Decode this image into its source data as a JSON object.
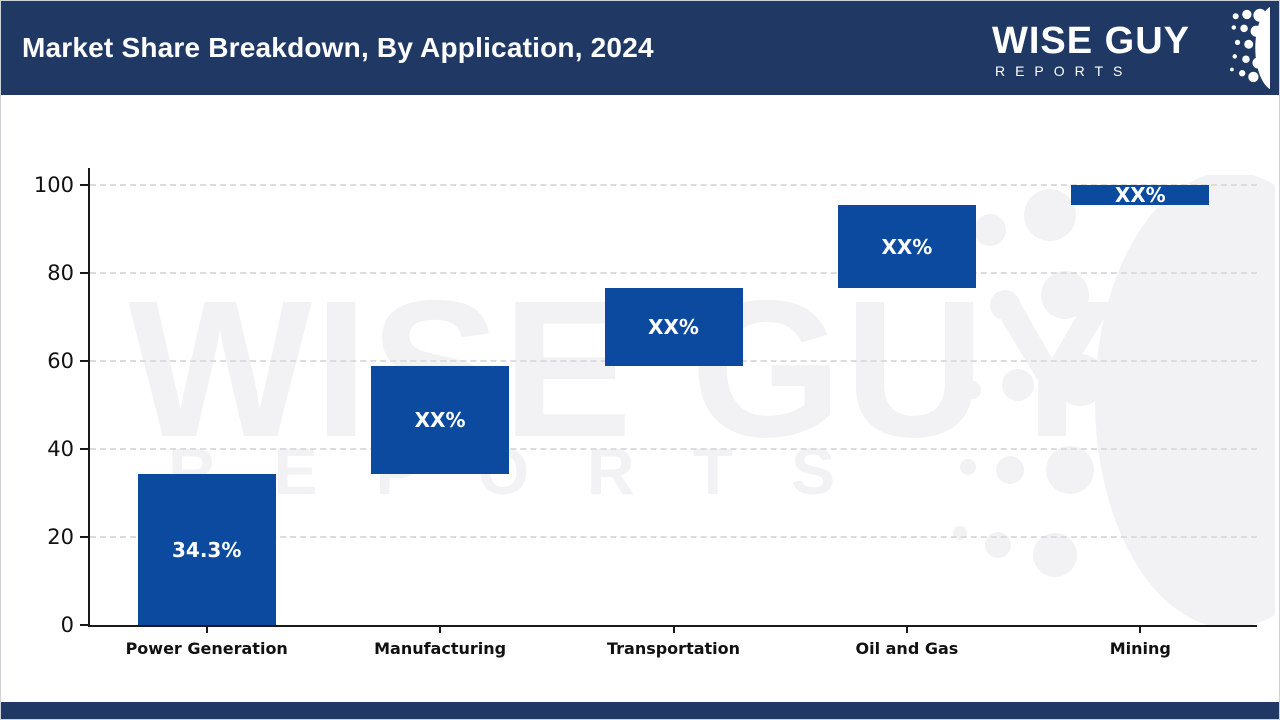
{
  "header": {
    "title": "Market Share Breakdown, By Application, 2024",
    "logo": {
      "line1": "WISE GUY",
      "line2": "REPORTS"
    }
  },
  "watermark": {
    "line1": "WISE GUY",
    "line2": "REPORTS"
  },
  "colors": {
    "header_bg": "#1f3864",
    "footer_bg": "#1f3864",
    "bar": "#0b4a9e",
    "grid": "#dcdcdc",
    "axis": "#1a1a1a",
    "bar_label": "#ffffff",
    "watermark": "#f2f2f5"
  },
  "chart_data": {
    "type": "bar",
    "subtype": "waterfall",
    "title": "Market Share Breakdown, By Application, 2024",
    "categories": [
      "Power Generation",
      "Manufacturing",
      "Transportation",
      "Oil and Gas",
      "Mining"
    ],
    "segments": [
      {
        "category": "Power Generation",
        "start": 0,
        "end": 34.3,
        "label": "34.3%"
      },
      {
        "category": "Manufacturing",
        "start": 34.3,
        "end": 59.0,
        "label": "XX%"
      },
      {
        "category": "Transportation",
        "start": 59.0,
        "end": 76.6,
        "label": "XX%"
      },
      {
        "category": "Oil and Gas",
        "start": 76.6,
        "end": 95.5,
        "label": "XX%"
      },
      {
        "category": "Mining",
        "start": 95.5,
        "end": 100,
        "label": "XX%"
      }
    ],
    "yticks": [
      0,
      20,
      40,
      60,
      80,
      100
    ],
    "ylim": [
      0,
      103.9
    ],
    "xlabel": "",
    "ylabel": "",
    "grid": "horizontal-dashed",
    "legend": "none",
    "bar_color": "#0b4a9e",
    "label_color": "#ffffff"
  }
}
